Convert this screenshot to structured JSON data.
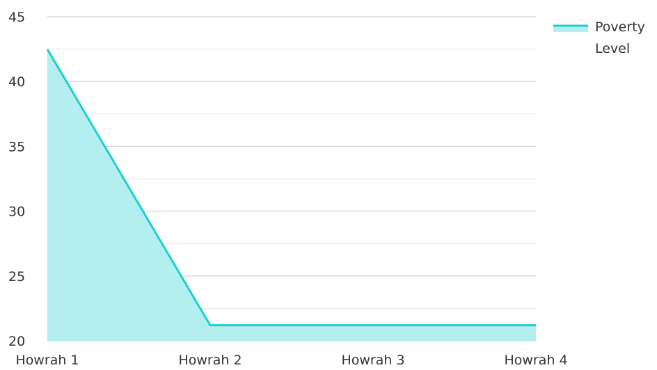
{
  "chart_data": {
    "type": "area",
    "categories": [
      "Howrah 1",
      "Howrah 2",
      "Howrah 3",
      "Howrah 4"
    ],
    "series": [
      {
        "name": "Poverty Level",
        "values": [
          42.5,
          21.2,
          21.2,
          21.2
        ]
      }
    ],
    "title": "",
    "xlabel": "",
    "ylabel": "",
    "ylim": [
      20,
      45
    ],
    "yticks": [
      20,
      25,
      30,
      35,
      40,
      45
    ],
    "grid": true,
    "legend": "top-right",
    "legend_lines": [
      "Poverty",
      "Level"
    ],
    "colors": {
      "line": "#1fcfcf",
      "fill": "#b3efee",
      "grid_major": "#c8c8c8",
      "grid_minor": "#e6e6e6",
      "text": "#333333"
    }
  }
}
